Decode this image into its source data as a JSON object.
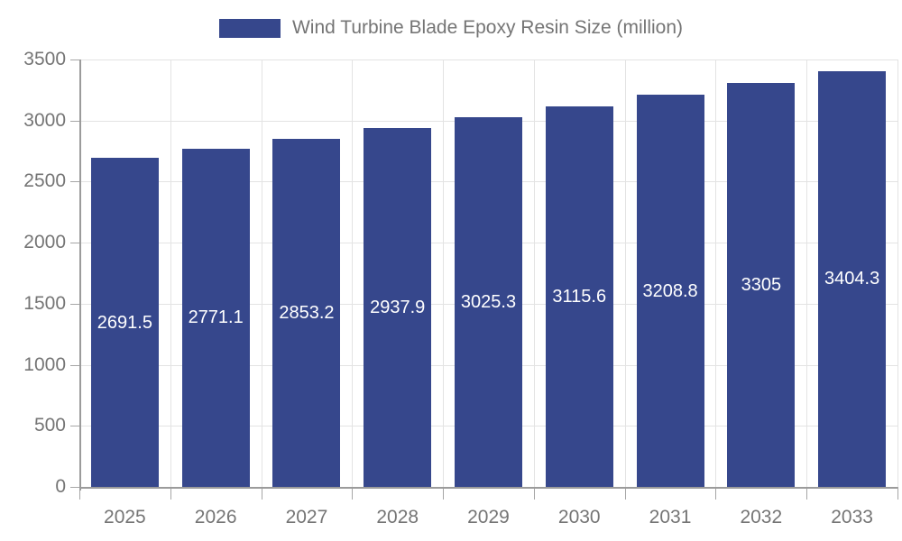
{
  "legend": {
    "label": "Wind Turbine Blade Epoxy Resin Size (million)",
    "swatch_color": "#36478C"
  },
  "chart_data": {
    "type": "bar",
    "title": "",
    "xlabel": "",
    "ylabel": "",
    "categories": [
      "2025",
      "2026",
      "2027",
      "2028",
      "2029",
      "2030",
      "2031",
      "2032",
      "2033"
    ],
    "series": [
      {
        "name": "Wind Turbine Blade Epoxy Resin Size (million)",
        "values": [
          2691.5,
          2771.1,
          2853.2,
          2937.9,
          3025.3,
          3115.6,
          3208.8,
          3305,
          3404.3
        ]
      }
    ],
    "value_labels_shown": true,
    "value_label_position": "inside-center",
    "ylim": [
      0,
      3500
    ],
    "yticks": [
      0,
      500,
      1000,
      1500,
      2000,
      2500,
      3000,
      3500
    ],
    "grid": true,
    "legend_position": "top-center",
    "colors": {
      "bar": "#36478C",
      "value_label": "#ffffff",
      "axis_text": "#757575",
      "grid_line": "#e3e3e3",
      "axis_line": "#9b9b9b",
      "tick_line": "#a6a6a6",
      "background": "#ffffff"
    }
  }
}
